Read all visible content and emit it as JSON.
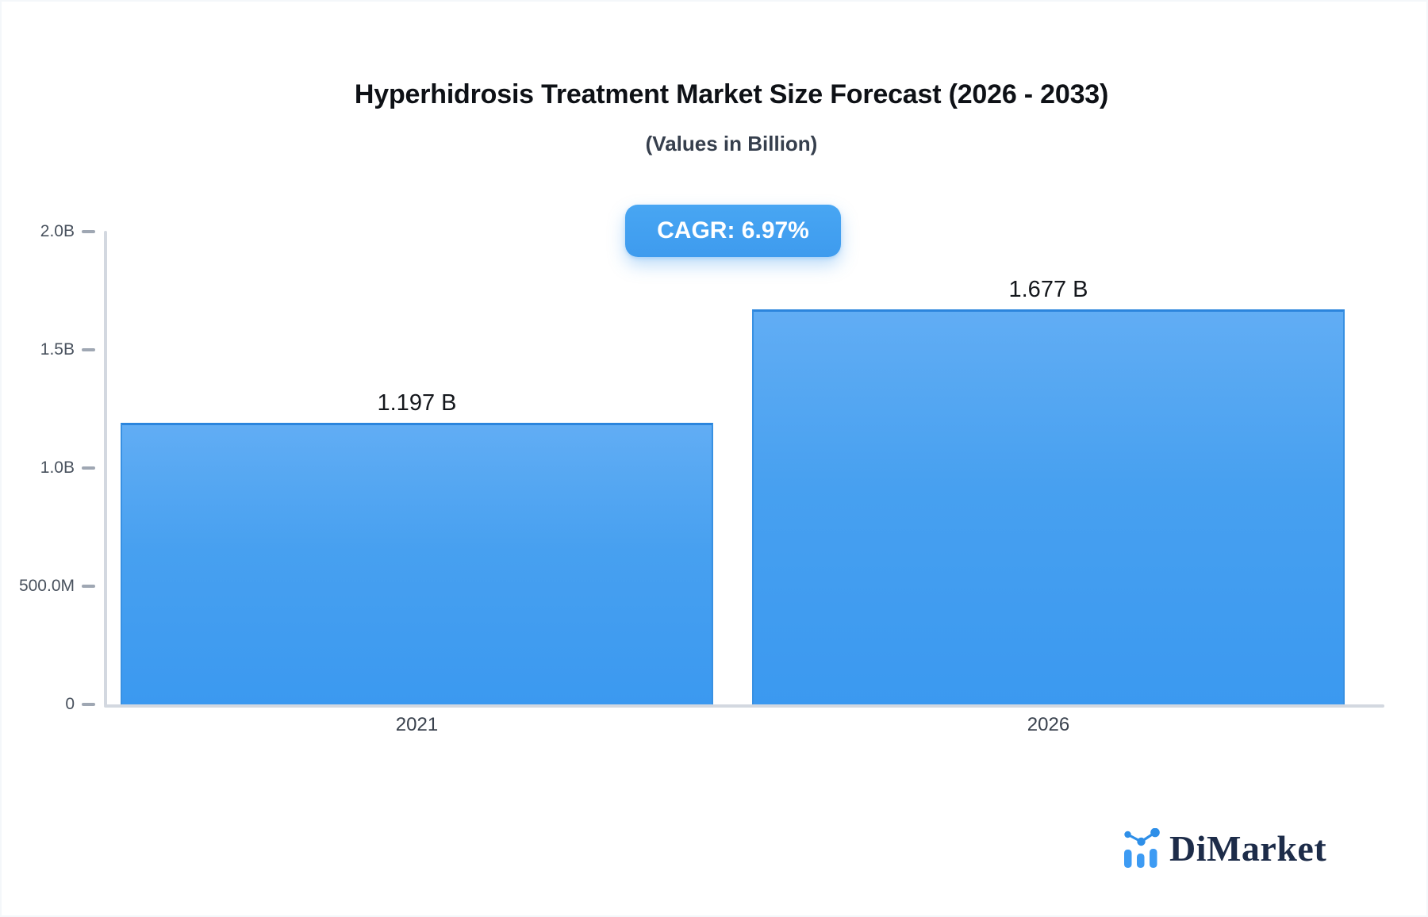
{
  "chart_data": {
    "type": "bar",
    "title": "Hyperhidrosis Treatment Market Size Forecast (2026 - 2033)",
    "subtitle": "(Values in Billion)",
    "cagr_label": "CAGR: 6.97%",
    "cagr_percent": 6.97,
    "categories": [
      "2021",
      "2026"
    ],
    "values": [
      1.197,
      1.677
    ],
    "value_labels": [
      "1.197 B",
      "1.677 B"
    ],
    "unit": "billion",
    "ylim": [
      0,
      2.0
    ],
    "yticks": [
      0,
      0.5,
      1.0,
      1.5,
      2.0
    ],
    "ytick_labels": [
      "0",
      "500.0M",
      "1.0B",
      "1.5B",
      "2.0B"
    ],
    "grid": false,
    "legend": false
  },
  "footer": {
    "brand": "DiMarket",
    "logo_icon": "bar-line-chart-icon"
  },
  "colors": {
    "bar_gradient_top": "#61adf4",
    "bar_gradient_bottom": "#3b99f0",
    "bar_border": "#2b85dd",
    "badge_blue": "#3e9bee",
    "axis_gray": "#d3d8e0",
    "tick_gray": "#9fa7b3",
    "title_text": "#0e1116",
    "logo_navy": "#1d2c49",
    "logo_blue": "#2e8fe8"
  }
}
